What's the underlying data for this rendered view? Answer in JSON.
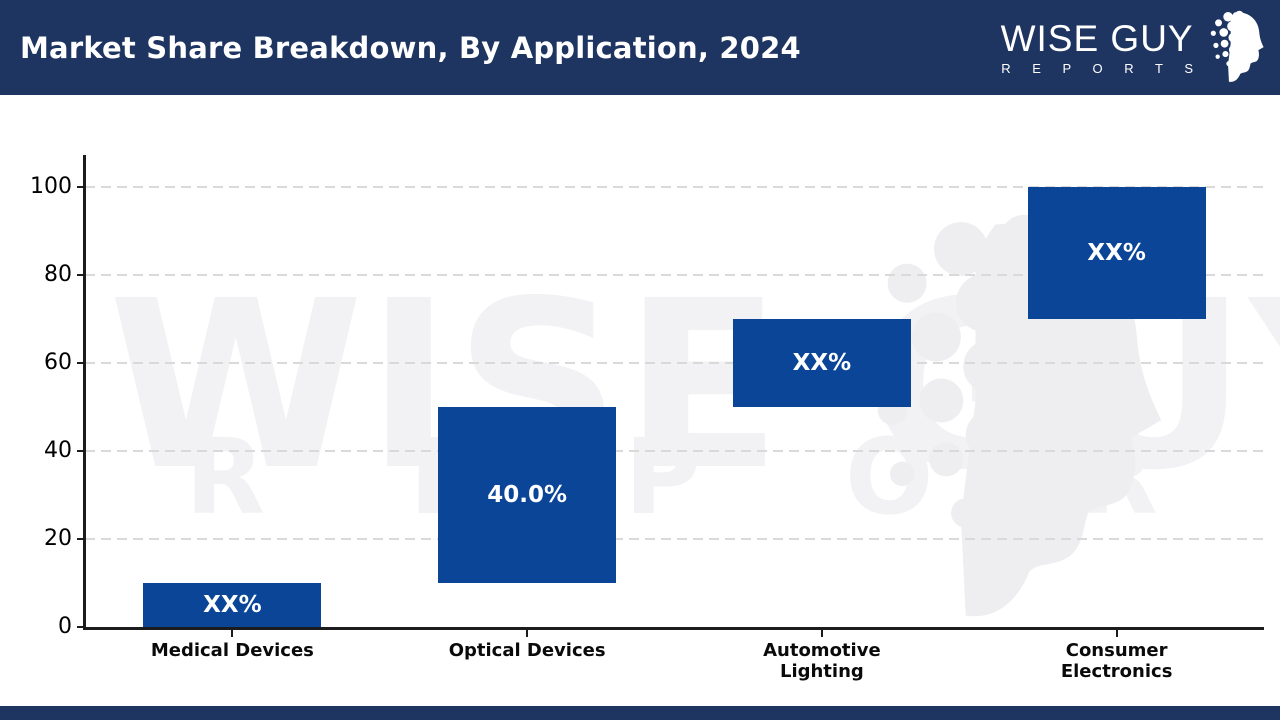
{
  "header": {
    "title": "Market Share Breakdown, By Application, 2024",
    "logo": {
      "name": "WISE GUY",
      "sub": "R E P O R T S"
    }
  },
  "watermark": {
    "line1": "WISE GUY",
    "line2": "R E P O R T S"
  },
  "chart_data": {
    "type": "bar",
    "variant": "floating-segment-waterfall",
    "title": "Market Share Breakdown, By Application, 2024",
    "categories": [
      "Medical Devices",
      "Optical Devices",
      "Automotive Lighting",
      "Consumer Electronics"
    ],
    "category_lines": [
      [
        "Medical Devices"
      ],
      [
        "Optical Devices"
      ],
      [
        "Automotive",
        "Lighting"
      ],
      [
        "Consumer",
        "Electronics"
      ]
    ],
    "segments": [
      {
        "category": "Medical Devices",
        "start": 0,
        "end": 10,
        "label": "XX%"
      },
      {
        "category": "Optical Devices",
        "start": 10,
        "end": 50,
        "label": "40.0%"
      },
      {
        "category": "Automotive Lighting",
        "start": 50,
        "end": 70,
        "label": "XX%"
      },
      {
        "category": "Consumer Electronics",
        "start": 70,
        "end": 100,
        "label": "XX%"
      }
    ],
    "yticks": [
      0,
      20,
      40,
      60,
      80,
      100
    ],
    "ylim": [
      0,
      107
    ],
    "xlabel": "",
    "ylabel": "",
    "grid": "dashed-horizontal",
    "legend": "none",
    "colors": {
      "bar": "#0b4598",
      "header_band": "#1e3461",
      "grid": "#d9d9d9",
      "axis": "#1c1c1c",
      "bar_label": "#ffffff",
      "watermark": "#f2f2f4"
    }
  }
}
